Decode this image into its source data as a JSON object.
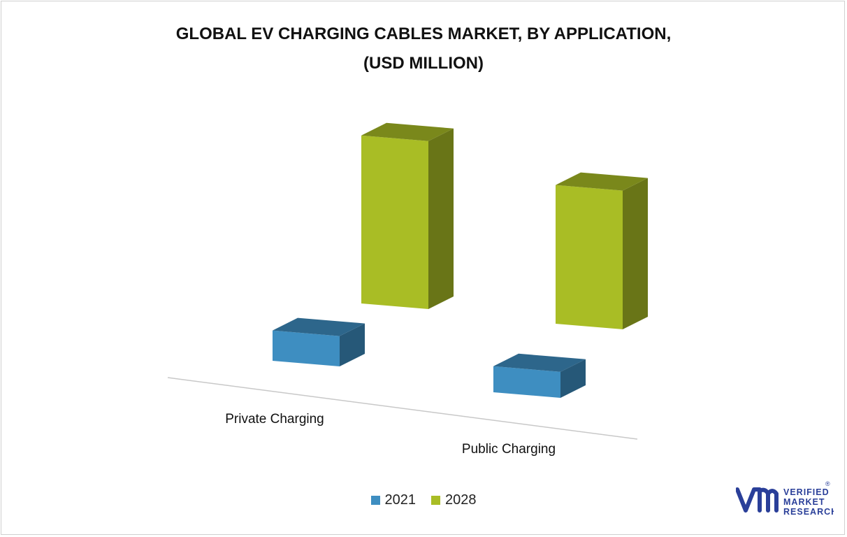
{
  "chart_data": {
    "type": "bar",
    "title": "GLOBAL EV CHARGING CABLES MARKET, BY APPLICATION,",
    "subtitle": "(USD MILLION)",
    "categories": [
      "Private Charging",
      "Public Charging"
    ],
    "series": [
      {
        "name": "2021",
        "values": [
          28,
          24
        ],
        "color": "#3e8ec1"
      },
      {
        "name": "2028",
        "values": [
          155,
          128
        ],
        "color": "#a9bd25"
      }
    ],
    "ylim": [
      0,
      160
    ],
    "grid": false,
    "legend_position": "bottom",
    "style": "3d-column"
  },
  "logo": {
    "line1": "VERIFIED",
    "line2": "MARKET",
    "line3": "RESEARCH",
    "mark": "®",
    "color": "#2a3f99"
  }
}
